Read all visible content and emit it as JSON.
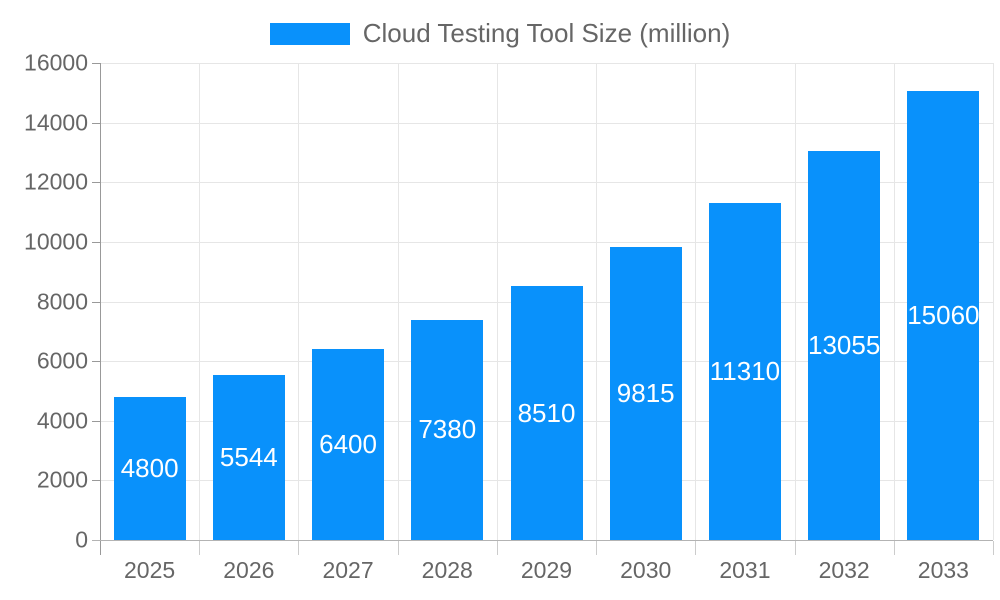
{
  "chart_data": {
    "type": "bar",
    "title": "Cloud Testing Tool Size (million)",
    "legend_label": "Cloud Testing Tool Size (million)",
    "categories": [
      "2025",
      "2026",
      "2027",
      "2028",
      "2029",
      "2030",
      "2031",
      "2032",
      "2033"
    ],
    "values": [
      4800,
      5544,
      6400,
      7380,
      8510,
      9815,
      11310,
      13055,
      15060
    ],
    "xlabel": "",
    "ylabel": "",
    "ylim": [
      0,
      16000
    ],
    "yticks": [
      0,
      2000,
      4000,
      6000,
      8000,
      10000,
      12000,
      14000,
      16000
    ],
    "grid": "both",
    "legend_position": "top",
    "colors": {
      "bar": "#0991fb",
      "gridline": "#e6e6e6",
      "axis_y": "#999999",
      "axis_x": "#b3b3b3",
      "tick_x": "#cccccc",
      "axis_text": "#666666",
      "value_label": "#ffffff"
    }
  }
}
